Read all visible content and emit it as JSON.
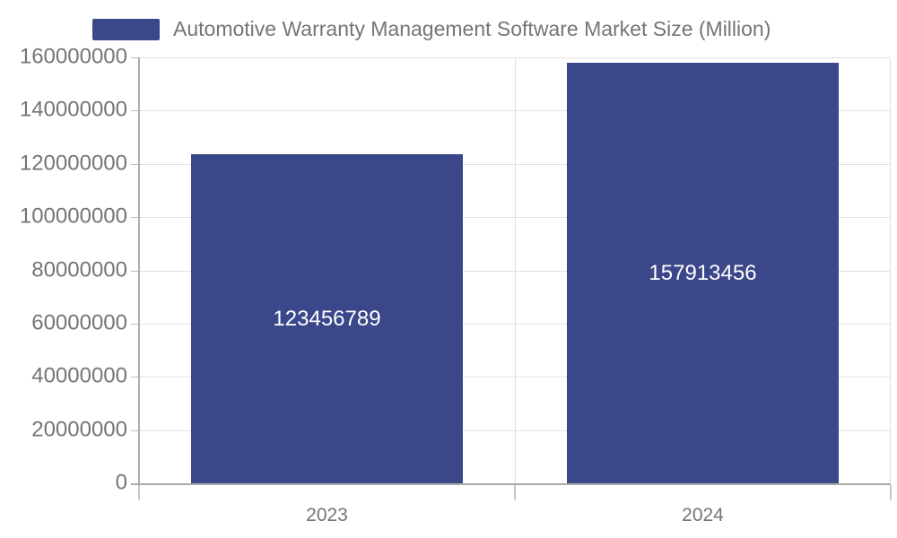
{
  "chart_data": {
    "type": "bar",
    "title": "Automotive Warranty Management Software Market Size (Million)",
    "legend_entries": [
      "Automotive Warranty Management Software Market Size (Million)"
    ],
    "legend_position": "top-center",
    "categories": [
      "2023",
      "2024"
    ],
    "series": [
      {
        "name": "Automotive Warranty Management Software Market Size (Million)",
        "values": [
          123456789,
          157913456
        ]
      }
    ],
    "data_labels": [
      "123456789",
      "157913456"
    ],
    "xlabel": "",
    "ylabel": "",
    "ylim": [
      0,
      160000000
    ],
    "ytick_step": 20000000,
    "ytick_labels": [
      "0",
      "20000000",
      "40000000",
      "60000000",
      "80000000",
      "100000000",
      "120000000",
      "140000000",
      "160000000"
    ],
    "grid": true,
    "colors": {
      "bar": "#3a478a",
      "bar_value_label": "#ffffff",
      "axis_text": "#757575",
      "gridline": "#e0e0e0",
      "axis_line": "#ababab"
    }
  }
}
